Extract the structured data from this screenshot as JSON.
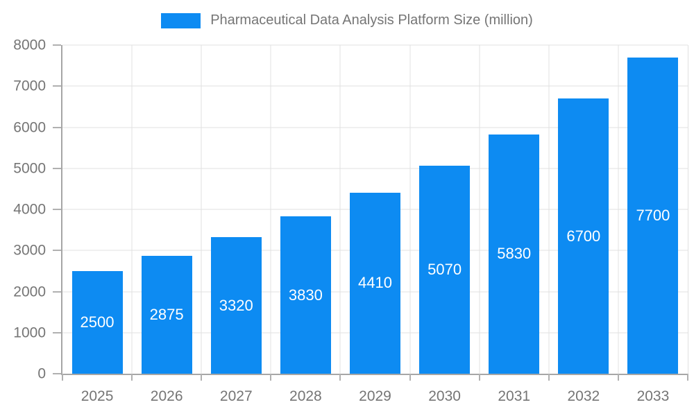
{
  "legend": {
    "label": "Pharmaceutical Data Analysis Platform Size (million)"
  },
  "chart_data": {
    "type": "bar",
    "title": "Pharmaceutical Data Analysis Platform Size (million)",
    "categories": [
      "2025",
      "2026",
      "2027",
      "2028",
      "2029",
      "2030",
      "2031",
      "2032",
      "2033"
    ],
    "values": [
      2500,
      2875,
      3320,
      3830,
      4410,
      5070,
      5830,
      6700,
      7700
    ],
    "value_labels": [
      "2500",
      "2875",
      "3320",
      "3830",
      "4410",
      "5070",
      "5830",
      "6700",
      "7700"
    ],
    "xlabel": "",
    "ylabel": "",
    "ylim": [
      0,
      8000
    ],
    "yticks": [
      0,
      1000,
      2000,
      3000,
      4000,
      5000,
      6000,
      7000,
      8000
    ],
    "grid": true,
    "legend_position": "top-center",
    "bar_width_fraction": 0.73,
    "colors": {
      "bar": "#0d8bf2",
      "value_label": "#ffffff",
      "axis_text": "#757575",
      "grid_line": "#e0e0e0",
      "axis_line": "#a6a6a6",
      "tick": "#b0b0b0",
      "background": "#ffffff"
    }
  }
}
